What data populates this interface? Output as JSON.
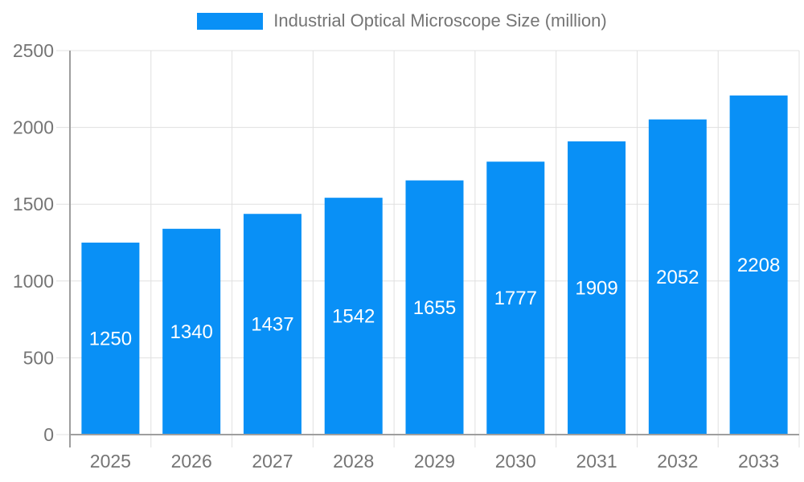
{
  "legend": {
    "label": "Industrial Optical Microscope Size (million)",
    "swatch_color": "#0990f6"
  },
  "chart_data": {
    "type": "bar",
    "title": "Industrial Optical Microscope Size (million)",
    "categories": [
      "2025",
      "2026",
      "2027",
      "2028",
      "2029",
      "2030",
      "2031",
      "2032",
      "2033"
    ],
    "values": [
      1250,
      1340,
      1437,
      1542,
      1655,
      1777,
      1909,
      2052,
      2208
    ],
    "xlabel": "",
    "ylabel": "",
    "ylim": [
      0,
      2500
    ],
    "yticks": [
      0,
      500,
      1000,
      1500,
      2000,
      2500
    ],
    "grid": true,
    "legend_position": "top-center",
    "value_labels_shown": true,
    "value_label_position": "center-of-bar",
    "colors": {
      "bar": "#0990f6",
      "value_label": "#ffffff",
      "axis_text": "#757575",
      "grid_line": "#e0e0e0",
      "axis_line": "#9e9e9e"
    }
  }
}
